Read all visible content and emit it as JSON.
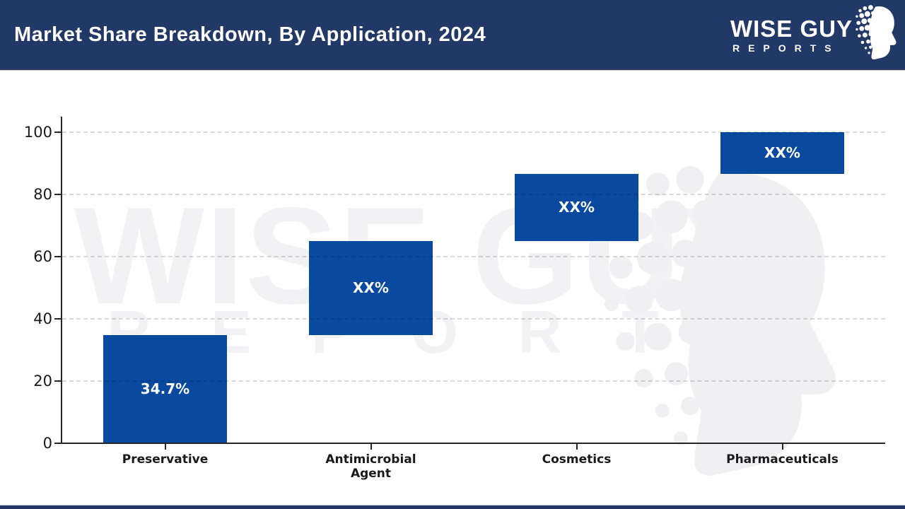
{
  "header": {
    "title": "Market Share Breakdown, By Application, 2024",
    "logo": {
      "name_top": "WISE GUY",
      "name_bottom": "REPORTS",
      "face_icon": "dotted-face-profile"
    }
  },
  "watermark": {
    "line1": "WISE GUY",
    "line2": "REPORTS",
    "face_icon": "dotted-face-profile"
  },
  "colors": {
    "header_bg": "#223866",
    "footer_bg": "#223866",
    "bar_fill": "#0a49a0",
    "bar_label_text": "#ffffff",
    "axis": "#262626",
    "tick_label_text": "#1a1a1a",
    "gridline": "#d9d9d9",
    "watermark": "#f2f2f4",
    "background": "#ffffff"
  },
  "chart_data": {
    "type": "bar",
    "subtype": "floating-waterfall",
    "title": "Market Share Breakdown, By Application, 2024",
    "categories": [
      "Preservative",
      "Antimicrobial\nAgent",
      "Cosmetics",
      "Pharmaceuticals"
    ],
    "segments": [
      {
        "start": 0,
        "end": 34.7,
        "label": "34.7%"
      },
      {
        "start": 34.7,
        "end": 65,
        "label": "XX%"
      },
      {
        "start": 65,
        "end": 86.5,
        "label": "XX%"
      },
      {
        "start": 86.5,
        "end": 100,
        "label": "XX%"
      }
    ],
    "xlabel": "",
    "ylabel": "",
    "ylim": [
      0,
      100
    ],
    "yticks": [
      0,
      20,
      40,
      60,
      80,
      100
    ],
    "grid": "horizontal-dashed",
    "legend": "none",
    "bar_width_fraction": 0.6
  }
}
